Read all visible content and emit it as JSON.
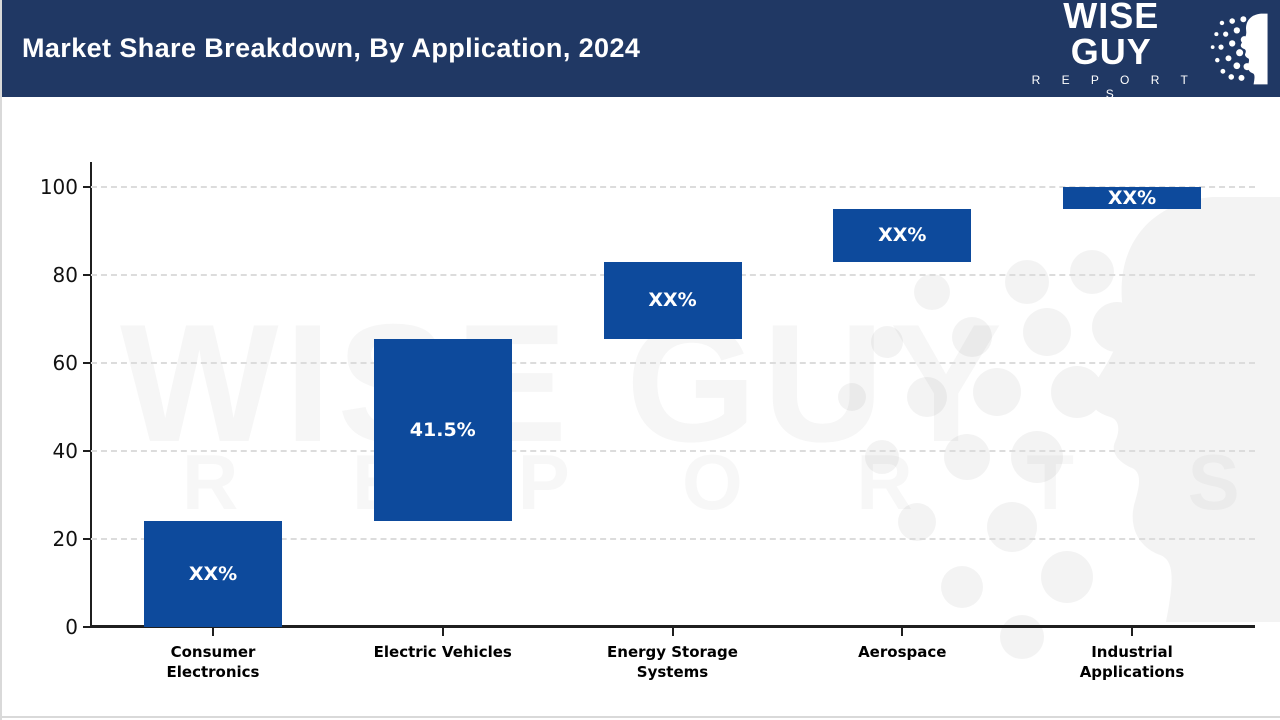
{
  "header": {
    "title": "Market Share Breakdown, By Application, 2024",
    "bg_color": "#203864",
    "logo": {
      "line1": "WISE GUY",
      "line2": "R E P O R T S"
    }
  },
  "watermark": {
    "line1": "WISE GUY",
    "line2": "R E P O R T S"
  },
  "chart_data": {
    "type": "bar",
    "subtype": "floating-segment-waterfall",
    "title": "Market Share Breakdown, By Application, 2024",
    "categories": [
      "Consumer Electronics",
      "Electric Vehicles",
      "Energy Storage Systems",
      "Aerospace",
      "Industrial Applications"
    ],
    "category_lines": [
      [
        "Consumer",
        "Electronics"
      ],
      [
        "Electric Vehicles"
      ],
      [
        "Energy Storage",
        "Systems"
      ],
      [
        "Aerospace"
      ],
      [
        "Industrial",
        "Applications"
      ]
    ],
    "segments": [
      {
        "category": "Consumer Electronics",
        "start": 0,
        "end": 24,
        "label": "XX%"
      },
      {
        "category": "Electric Vehicles",
        "start": 24,
        "end": 65.5,
        "label": "41.5%"
      },
      {
        "category": "Energy Storage Systems",
        "start": 65.5,
        "end": 83,
        "label": "XX%"
      },
      {
        "category": "Aerospace",
        "start": 83,
        "end": 95,
        "label": "XX%"
      },
      {
        "category": "Industrial Applications",
        "start": 95,
        "end": 100,
        "label": "XX%"
      }
    ],
    "yticks": [
      0,
      20,
      40,
      60,
      80,
      100
    ],
    "ylim": [
      0,
      105
    ],
    "xlabel": "",
    "ylabel": "",
    "legend": "none",
    "grid": "horizontal-dashed",
    "colors": {
      "bar": "#0d4a9c",
      "bar_label_text": "#ffffff",
      "axis": "#1f1f1f",
      "gridline": "#dcdcdc",
      "tick_text": "#111111",
      "header_bg": "#203864",
      "header_text": "#ffffff"
    }
  }
}
